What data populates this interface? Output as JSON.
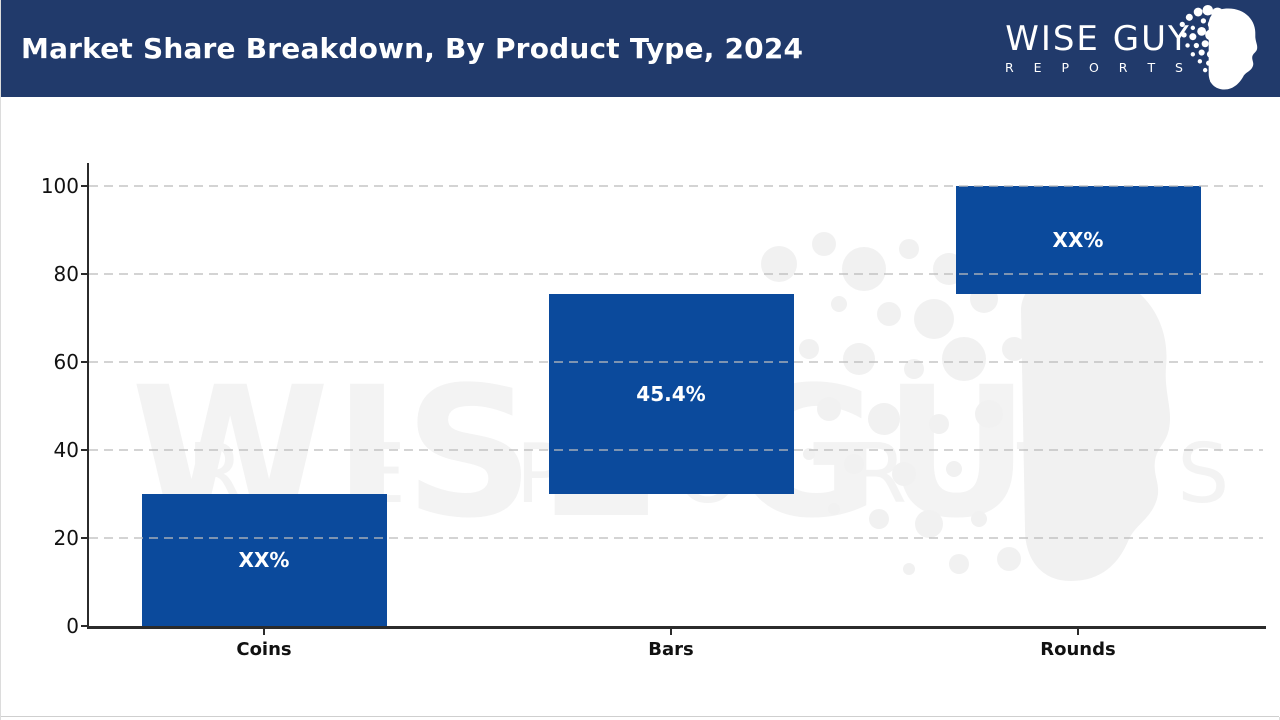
{
  "header": {
    "title": "Market Share Breakdown, By Product Type, 2024",
    "background": "#213a6b",
    "logo": {
      "line1": "WISE GUY",
      "line2": "R E P O R T S"
    }
  },
  "watermark": {
    "line1": "WISE GUY",
    "line2": "R E P O R T S"
  },
  "chart_data": {
    "type": "bar",
    "subtype": "floating-segment-waterfall",
    "title": "Market Share Breakdown, By Product Type, 2024",
    "categories": [
      "Coins",
      "Bars",
      "Rounds"
    ],
    "segments": [
      {
        "category": "Coins",
        "base": 0,
        "top": 30,
        "label": "XX%"
      },
      {
        "category": "Bars",
        "base": 30,
        "top": 75.4,
        "label": "45.4%"
      },
      {
        "category": "Rounds",
        "base": 75.4,
        "top": 100,
        "label": "XX%"
      }
    ],
    "yticks": [
      0,
      20,
      40,
      60,
      80,
      100
    ],
    "ylim": [
      0,
      100
    ],
    "xlabel": "",
    "ylabel": "",
    "grid": "horizontal-dashed-over-bars",
    "legend": "none",
    "bar_color": "#0b4a9c",
    "bar_label_color": "#ffffff",
    "axis_color": "#2b2b2b",
    "tick_label_color": "#111111"
  }
}
